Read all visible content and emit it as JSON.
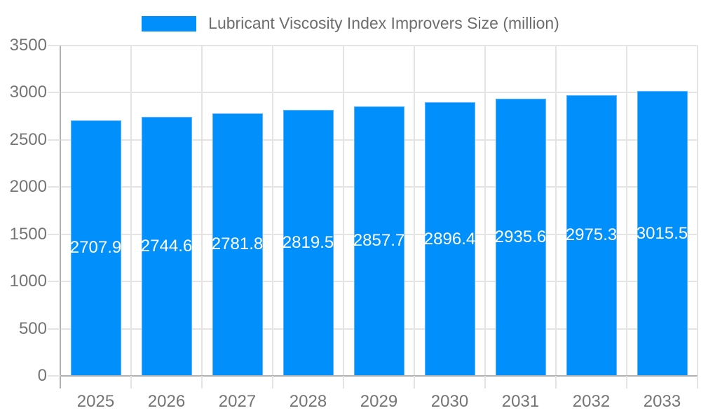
{
  "legend": {
    "label": "Lubricant Viscosity Index Improvers Size (million)"
  },
  "colors": {
    "bar": "#008FFB",
    "grid": "#e4e4e4",
    "axis": "#b1b1b1",
    "axis_label": "#757575",
    "legend_text": "#6d6d6d",
    "data_label": "#ffffff",
    "background": "#ffffff"
  },
  "chart_data": {
    "type": "bar",
    "title": "Lubricant Viscosity Index Improvers Size (million)",
    "categories": [
      "2025",
      "2026",
      "2027",
      "2028",
      "2029",
      "2030",
      "2031",
      "2032",
      "2033"
    ],
    "series": [
      {
        "name": "Lubricant Viscosity Index Improvers Size (million)",
        "values": [
          2707.9,
          2744.6,
          2781.8,
          2819.5,
          2857.7,
          2896.4,
          2935.6,
          2975.3,
          3015.5
        ]
      }
    ],
    "data_labels": [
      "2707.9",
      "2744.6",
      "2781.8",
      "2819.5",
      "2857.7",
      "2896.4",
      "2935.6",
      "2975.3",
      "3015.5"
    ],
    "xlabel": "",
    "ylabel": "",
    "ylim": [
      0,
      3500
    ],
    "ytick_interval": 500,
    "ytick_labels": [
      "0",
      "500",
      "1000",
      "1500",
      "2000",
      "2500",
      "3000",
      "3500"
    ],
    "grid": true,
    "legend_position": "top",
    "data_label_position": "bar-center"
  }
}
